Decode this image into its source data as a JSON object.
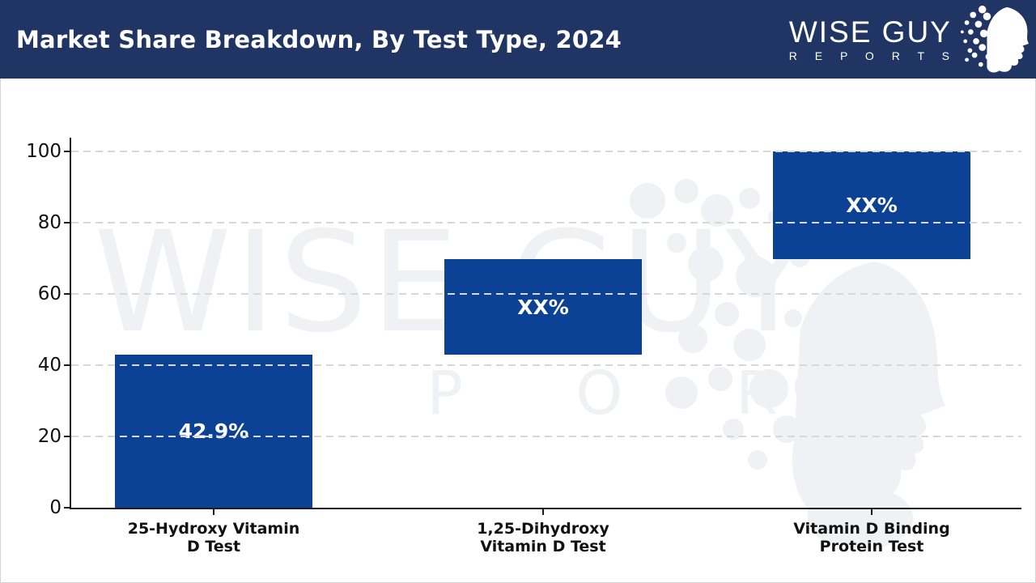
{
  "header": {
    "title": "Market Share Breakdown, By Test Type, 2024",
    "logo": {
      "name": "Wise Guy Reports",
      "line1": "WISE GUY",
      "line2": "R E P O R T S"
    }
  },
  "watermark": {
    "line1": "WISE GUY",
    "line2": "R E P O R T S"
  },
  "chart_data": {
    "type": "bar",
    "subtype": "floating-segment-waterfall",
    "title": "Market Share Breakdown, By Test Type, 2024",
    "categories": [
      [
        "25-Hydroxy Vitamin",
        "D Test"
      ],
      [
        "1,25-Dihydroxy",
        "Vitamin D Test"
      ],
      [
        "Vitamin D Binding",
        "Protein Test"
      ]
    ],
    "segments": [
      {
        "start": 0,
        "end": 42.9,
        "label": "42.9%"
      },
      {
        "start": 42.9,
        "end": 69.6,
        "label": "XX%"
      },
      {
        "start": 69.6,
        "end": 100,
        "label": "XX%"
      }
    ],
    "yticks": [
      0,
      20,
      40,
      60,
      80,
      100
    ],
    "ylim": [
      0,
      105
    ],
    "xlabel": "",
    "ylabel": "",
    "grid": "horizontal-dashed",
    "legend": "none",
    "bar_color": "#0c4296",
    "bar_label_color": "#ffffff"
  },
  "colors": {
    "header_bg": "#213564",
    "bar": "#0c4296",
    "gridline": "#d8d8d8",
    "axis": "#1c1c1c",
    "watermark": "#f0f1f4",
    "page_bg": "#ffffff",
    "title_text": "#ffffff",
    "tick_text": "#111111"
  }
}
